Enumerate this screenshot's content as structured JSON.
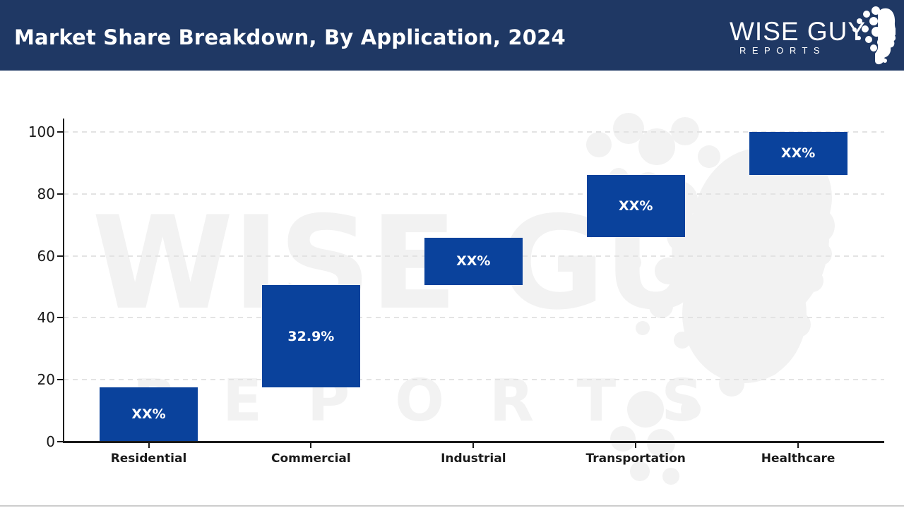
{
  "header": {
    "title": "Market Share Breakdown, By Application, 2024",
    "logo": {
      "main": "WISE GUY",
      "sub": "REPORTS"
    }
  },
  "watermark": {
    "main": "WISE GUY",
    "sub": "REPORTS"
  },
  "chart_data": {
    "type": "bar",
    "subtype": "waterfall",
    "title": "Market Share Breakdown, By Application, 2024",
    "xlabel": "",
    "ylabel": "",
    "categories": [
      "Residential",
      "Commercial",
      "Industrial",
      "Transportation",
      "Healthcare"
    ],
    "segments": [
      {
        "category": "Residential",
        "start": 0,
        "end": 17.6,
        "label": "XX%"
      },
      {
        "category": "Commercial",
        "start": 17.6,
        "end": 50.5,
        "label": "32.9%"
      },
      {
        "category": "Industrial",
        "start": 50.6,
        "end": 65.8,
        "label": "XX%"
      },
      {
        "category": "Transportation",
        "start": 66.0,
        "end": 86.1,
        "label": "XX%"
      },
      {
        "category": "Healthcare",
        "start": 86.2,
        "end": 100.0,
        "label": "XX%"
      }
    ],
    "y_ticks": [
      0,
      20,
      40,
      60,
      80,
      100
    ],
    "ylim": [
      0,
      104
    ],
    "grid": "horizontal dashed",
    "legend": "none",
    "bar_color": "#0a429c",
    "bar_label_color": "#ffffff"
  },
  "colors": {
    "header_bg": "#1f3864",
    "bar": "#0a429c",
    "watermark": "#f2f2f2",
    "axis": "#1a1a1a"
  }
}
